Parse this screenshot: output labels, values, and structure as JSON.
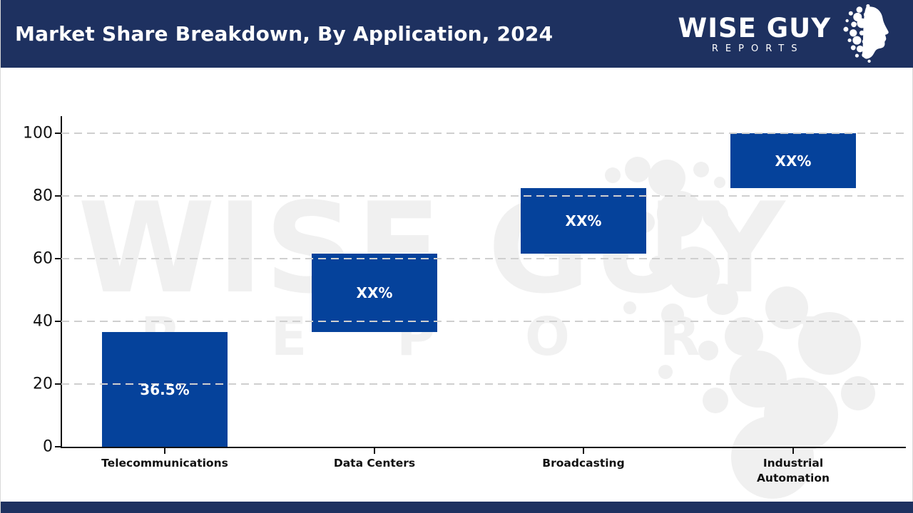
{
  "header": {
    "title": "Market Share Breakdown, By Application, 2024",
    "logo": {
      "name_top": "WISE GUY",
      "name_bottom": "REPORTS"
    }
  },
  "watermark": {
    "line1": "WISE GUY",
    "line2": "REPORTS"
  },
  "colors": {
    "header_bg": "#1e3160",
    "bar_blue": "#05429b",
    "grid": "#cfcfcf",
    "axis": "#111111",
    "watermark": "#f0f0f0",
    "bar_label_text": "#ffffff",
    "title_text": "#ffffff"
  },
  "chart_data": {
    "type": "bar",
    "subtype": "waterfall",
    "title": "Market Share Breakdown, By Application, 2024",
    "categories": [
      "Telecommunications",
      "Data Centers",
      "Broadcasting",
      "Industrial\nAutomation"
    ],
    "bars": [
      {
        "category": "Telecommunications",
        "base": 0,
        "top": 36.5,
        "value": 36.5,
        "label": "36.5%"
      },
      {
        "category": "Data Centers",
        "base": 36.5,
        "top": 61.5,
        "value": 25,
        "label": "XX%"
      },
      {
        "category": "Broadcasting",
        "base": 61.5,
        "top": 82.5,
        "value": 21,
        "label": "XX%"
      },
      {
        "category": "Industrial Automation",
        "base": 82.5,
        "top": 100,
        "value": 17.5,
        "label": "XX%"
      }
    ],
    "xlabel": "",
    "ylabel": "",
    "ylim": [
      0,
      100
    ],
    "yticks": [
      0,
      20,
      40,
      60,
      80,
      100
    ],
    "grid": "dashed horizontal, drawn over bars",
    "legend": "none"
  }
}
